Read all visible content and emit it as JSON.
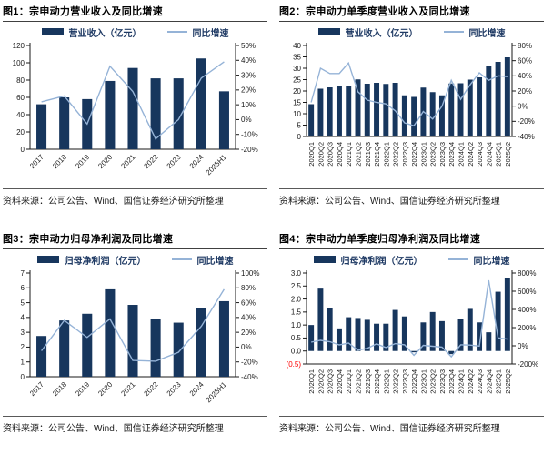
{
  "colors": {
    "bar": "#17365d",
    "line": "#95b3d7",
    "axis": "#1a1a1a",
    "text": "#1a1a1a",
    "negative": "#ff0000",
    "title_rule": "#404040",
    "source_rule": "#595959"
  },
  "panels": [
    {
      "source": "资料来源：公司公告、Wind、国信证券经济研究所整理"
    },
    {
      "source": "资料来源：公司公告、Wind、国信证券经济研究所整理"
    },
    {
      "source": "资料来源：公司公告、Wind、国信证券经济研究所整理"
    },
    {
      "source": "资料来源：公司公告、Wind、国信证券经济研究所整理"
    }
  ],
  "chart_data": [
    {
      "type": "bar+line",
      "title": "图1：宗申动力营业收入及同比增速",
      "categories": [
        "2017",
        "2018",
        "2019",
        "2020",
        "2021",
        "2022",
        "2023",
        "2024",
        "2025H1"
      ],
      "series": [
        {
          "name": "营业收入（亿元）",
          "render": "bar",
          "axis": "left",
          "values": [
            52,
            60,
            58,
            79,
            94,
            82,
            82,
            105,
            67
          ]
        },
        {
          "name": "同比增速",
          "render": "line",
          "axis": "right",
          "unit": "%",
          "values": [
            12,
            16,
            -3,
            36,
            19,
            -13,
            0,
            28,
            39
          ]
        }
      ],
      "y_left": {
        "min": 0,
        "max": 120,
        "step": 20,
        "decimals": 0
      },
      "y_right": {
        "min": -20,
        "max": 50,
        "step": 10
      },
      "x_label_rotation": -45,
      "grid": false,
      "legend_position": "top"
    },
    {
      "type": "bar+line",
      "title": "图2：宗申动力单季度营业收入及同比增速",
      "categories": [
        "2020Q1",
        "2020Q2",
        "2020Q3",
        "2020Q4",
        "2021Q1",
        "2021Q2",
        "2021Q3",
        "2021Q4",
        "2022Q1",
        "2022Q2",
        "2022Q3",
        "2022Q4",
        "2023Q1",
        "2023Q2",
        "2023Q3",
        "2023Q4",
        "2024Q1",
        "2024Q2",
        "2024Q3",
        "2024Q4",
        "2025Q1",
        "2025Q2"
      ],
      "series": [
        {
          "name": "营业收入（亿元）",
          "render": "bar",
          "axis": "left",
          "values": [
            14.2,
            21.0,
            21.6,
            22.3,
            22.3,
            25.1,
            23.2,
            23.6,
            23.1,
            23.6,
            18.1,
            17.4,
            21.5,
            19.5,
            18.1,
            23.3,
            23.4,
            25.0,
            26.0,
            31.2,
            32.8,
            34.8
          ]
        },
        {
          "name": "同比增速",
          "render": "line",
          "axis": "right",
          "unit": "%",
          "values": [
            5,
            50,
            43,
            43,
            57,
            19,
            8,
            5,
            3,
            -6,
            -22,
            -26,
            -7,
            -17,
            0,
            34,
            9,
            28,
            44,
            34,
            40,
            39
          ]
        }
      ],
      "y_left": {
        "min": 0,
        "max": 40,
        "step": 5,
        "decimals": 0
      },
      "y_right": {
        "min": -40,
        "max": 80,
        "step": 20
      },
      "x_label_rotation": -90,
      "grid": false,
      "legend_position": "top"
    },
    {
      "type": "bar+line",
      "title": "图3：宗申动力归母净利润及同比增速",
      "categories": [
        "2017",
        "2018",
        "2019",
        "2020",
        "2021",
        "2022",
        "2023",
        "2024",
        "2025H1"
      ],
      "series": [
        {
          "name": "归母净利润（亿元）",
          "render": "bar",
          "axis": "left",
          "values": [
            2.75,
            3.8,
            4.25,
            5.9,
            4.85,
            3.9,
            3.65,
            4.65,
            5.1
          ]
        },
        {
          "name": "同比增速",
          "render": "line",
          "axis": "right",
          "unit": "%",
          "values": [
            -5,
            36,
            13,
            38,
            -18,
            -19,
            -7,
            28,
            78
          ]
        }
      ],
      "y_left": {
        "min": 0,
        "max": 7,
        "step": 1,
        "decimals": 0
      },
      "y_right": {
        "min": -40,
        "max": 100,
        "step": 20
      },
      "x_label_rotation": -45,
      "grid": false,
      "legend_position": "top"
    },
    {
      "type": "bar+line",
      "title": "图4：宗申动力单季度归母净利润及同比增速",
      "categories": [
        "2020Q1",
        "2020Q2",
        "2020Q3",
        "2020Q4",
        "2021Q1",
        "2021Q2",
        "2021Q3",
        "2021Q4",
        "2022Q1",
        "2022Q2",
        "2022Q3",
        "2022Q4",
        "2023Q1",
        "2023Q2",
        "2023Q3",
        "2023Q4",
        "2024Q1",
        "2024Q2",
        "2024Q3",
        "2024Q4",
        "2025Q1",
        "2025Q2"
      ],
      "series": [
        {
          "name": "归母净利润（亿元）",
          "render": "bar",
          "axis": "left",
          "values": [
            1.0,
            2.4,
            1.67,
            0.87,
            1.3,
            1.27,
            1.2,
            1.05,
            1.05,
            1.58,
            1.33,
            -0.05,
            1.1,
            1.5,
            1.15,
            -0.12,
            1.22,
            1.62,
            1.1,
            0.72,
            2.28,
            2.82
          ]
        },
        {
          "name": "同比增速",
          "render": "line",
          "axis": "right",
          "unit": "%",
          "values": [
            40,
            60,
            45,
            10,
            30,
            -47,
            -28,
            21,
            -19,
            24,
            11,
            -105,
            5,
            -5,
            -14,
            -120,
            11,
            8,
            -4,
            720,
            87,
            74
          ]
        }
      ],
      "y_left": {
        "min": -0.5,
        "max": 3.0,
        "step": 0.5,
        "decimals": 1,
        "negative_in_red_parens": true
      },
      "y_right": {
        "min": -200,
        "max": 800,
        "step": 200
      },
      "x_label_rotation": -90,
      "grid": false,
      "legend_position": "top"
    }
  ]
}
